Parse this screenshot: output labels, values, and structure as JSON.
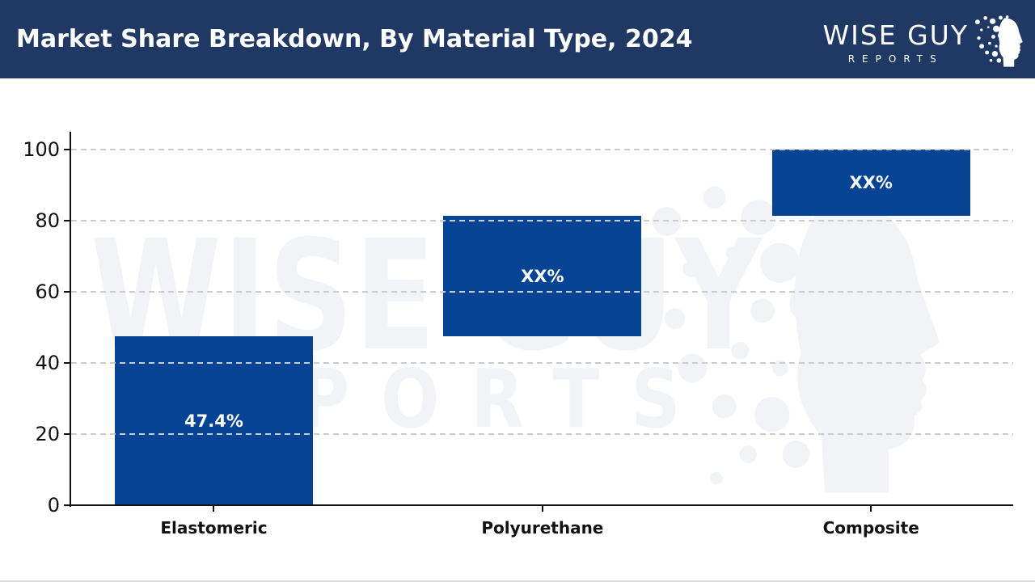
{
  "header": {
    "title": "Market Share Breakdown, By Material Type, 2024",
    "logo": {
      "line1": "WISE GUY",
      "line2": "REPORTS"
    }
  },
  "watermark": {
    "line1": "WISE GUY",
    "line2": "REPORTS"
  },
  "colors": {
    "header_bg": "#203864",
    "bar": "#054394",
    "grid": "#cccccc",
    "axis": "#111111",
    "watermark": "#f2f3f6",
    "bar_label": "#ffffff",
    "title_text": "#ffffff"
  },
  "chart_data": {
    "type": "bar",
    "subtype": "waterfall",
    "title": "Market Share Breakdown, By Material Type, 2024",
    "categories": [
      "Elastomeric",
      "Polyurethane",
      "Composite"
    ],
    "bars": [
      {
        "category": "Elastomeric",
        "start": 0,
        "end": 47.4,
        "label": "47.4%"
      },
      {
        "category": "Polyurethane",
        "start": 47.4,
        "end": 81.4,
        "label": "XX%"
      },
      {
        "category": "Composite",
        "start": 81.4,
        "end": 100,
        "label": "XX%"
      }
    ],
    "ylim": [
      0,
      105
    ],
    "yticks": [
      0,
      20,
      40,
      60,
      80,
      100
    ],
    "gridlines": {
      "values": [
        20,
        40,
        60,
        80,
        100
      ],
      "style": "dashed",
      "on": true
    },
    "legend": "none",
    "xlabel": "",
    "ylabel": ""
  }
}
